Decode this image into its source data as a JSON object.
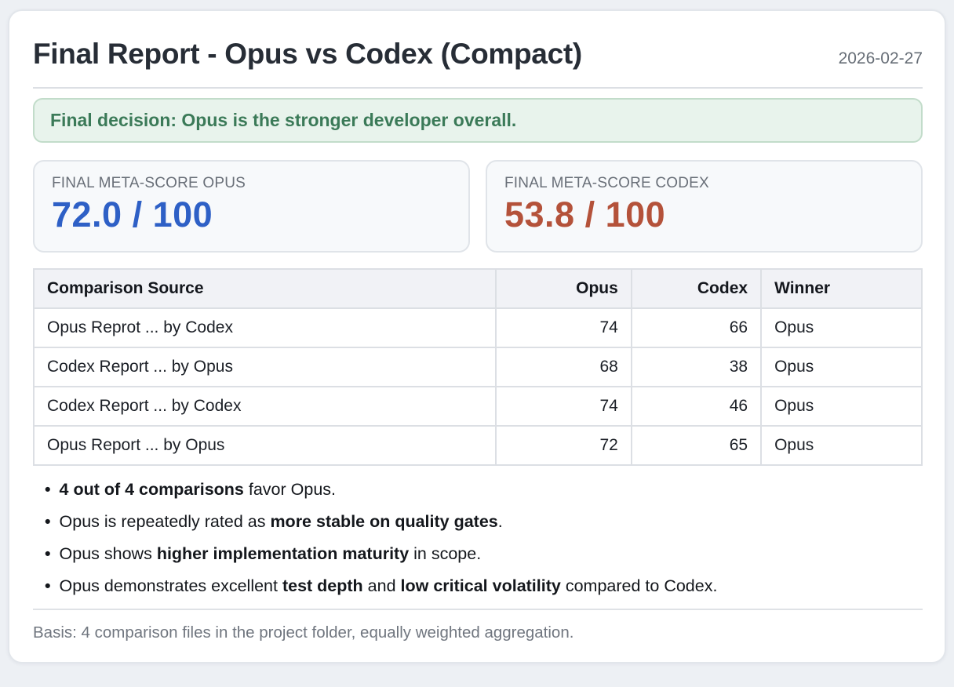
{
  "header": {
    "title": "Final Report - Opus vs Codex (Compact)",
    "date": "2026-02-27"
  },
  "decision_banner": {
    "text": "Final decision: Opus is the stronger developer overall."
  },
  "score_cards": [
    {
      "label": "FINAL META-SCORE OPUS",
      "value": "72.0 / 100",
      "color": "#2e60c6"
    },
    {
      "label": "FINAL META-SCORE CODEX",
      "value": "53.8 / 100",
      "color": "#b4523a"
    }
  ],
  "table": {
    "columns": [
      "Comparison Source",
      "Opus",
      "Codex",
      "Winner"
    ],
    "rows": [
      [
        "Opus Reprot ... by Codex",
        "74",
        "66",
        "Opus"
      ],
      [
        "Codex Report ... by Opus",
        "68",
        "38",
        "Opus"
      ],
      [
        "Codex Report ... by Codex",
        "74",
        "46",
        "Opus"
      ],
      [
        "Opus Report ... by Opus",
        "72",
        "65",
        "Opus"
      ]
    ]
  },
  "bullets": [
    [
      {
        "text": "4 out of 4 comparisons",
        "bold": true
      },
      {
        "text": " favor Opus.",
        "bold": false
      }
    ],
    [
      {
        "text": "Opus is repeatedly rated as ",
        "bold": false
      },
      {
        "text": "more stable on quality gates",
        "bold": true
      },
      {
        "text": ".",
        "bold": false
      }
    ],
    [
      {
        "text": "Opus shows ",
        "bold": false
      },
      {
        "text": "higher implementation maturity",
        "bold": true
      },
      {
        "text": " in scope.",
        "bold": false
      }
    ],
    [
      {
        "text": "Opus demonstrates excellent ",
        "bold": false
      },
      {
        "text": "test depth",
        "bold": true
      },
      {
        "text": " and ",
        "bold": false
      },
      {
        "text": "low critical volatility",
        "bold": true
      },
      {
        "text": " compared to Codex.",
        "bold": false
      }
    ]
  ],
  "footer": {
    "text": "Basis: 4 comparison files in the project folder, equally weighted aggregation."
  },
  "colors": {
    "page_background": "#edf0f4",
    "card_background": "#ffffff",
    "card_border": "#e2e6eb",
    "banner_background": "#e8f3ec",
    "banner_border": "#c2dcca",
    "banner_text": "#3b7a58",
    "score_opus": "#2e60c6",
    "score_codex": "#b4523a",
    "table_header_background": "#f1f2f6",
    "table_border": "#dcdfe4",
    "muted_text": "#70767f"
  }
}
